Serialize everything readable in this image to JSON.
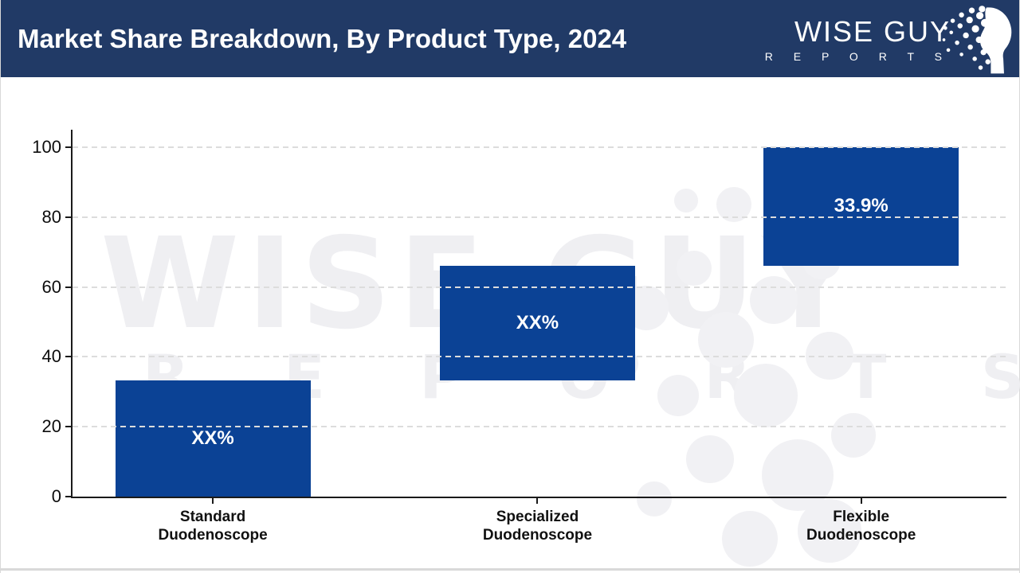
{
  "header": {
    "title": "Market Share Breakdown, By Product Type, 2024",
    "logo": {
      "name": "WISE GUY REPORTS",
      "line1": "WISE GUY",
      "line2": "R E P O R T S"
    }
  },
  "watermark": {
    "line1": "WISE GUY",
    "line2": "R E P O R T S"
  },
  "colors": {
    "header_bg": "#213a66",
    "bar_fill": "#0b4295",
    "bar_label_text": "#ffffff",
    "axis": "#1a1a1a",
    "gridline": "#dcdcdc",
    "watermark": "#efeff2",
    "frame_border": "#d9d9d9"
  },
  "chart_data": {
    "type": "bar",
    "subtype": "waterfall-stacked-segments",
    "title": "Market Share Breakdown, By Product Type, 2024",
    "categories": [
      [
        "Standard",
        "Duodenoscope"
      ],
      [
        "Specialized",
        "Duodenoscope"
      ],
      [
        "Flexible",
        "Duodenoscope"
      ]
    ],
    "segments": [
      {
        "category": "Standard Duodenoscope",
        "start": 0,
        "end": 33.2,
        "value_label": "XX%"
      },
      {
        "category": "Specialized Duodenoscope",
        "start": 33.2,
        "end": 66.1,
        "value_label": "XX%"
      },
      {
        "category": "Flexible Duodenoscope",
        "start": 66.1,
        "end": 100,
        "value_label": "33.9%",
        "value": 33.9
      }
    ],
    "xlabel": "",
    "ylabel": "",
    "ylim": [
      0,
      100
    ],
    "yticks": [
      0,
      20,
      40,
      60,
      80,
      100
    ],
    "grid": "horizontal-dashed-over-bars",
    "legend": "none"
  }
}
